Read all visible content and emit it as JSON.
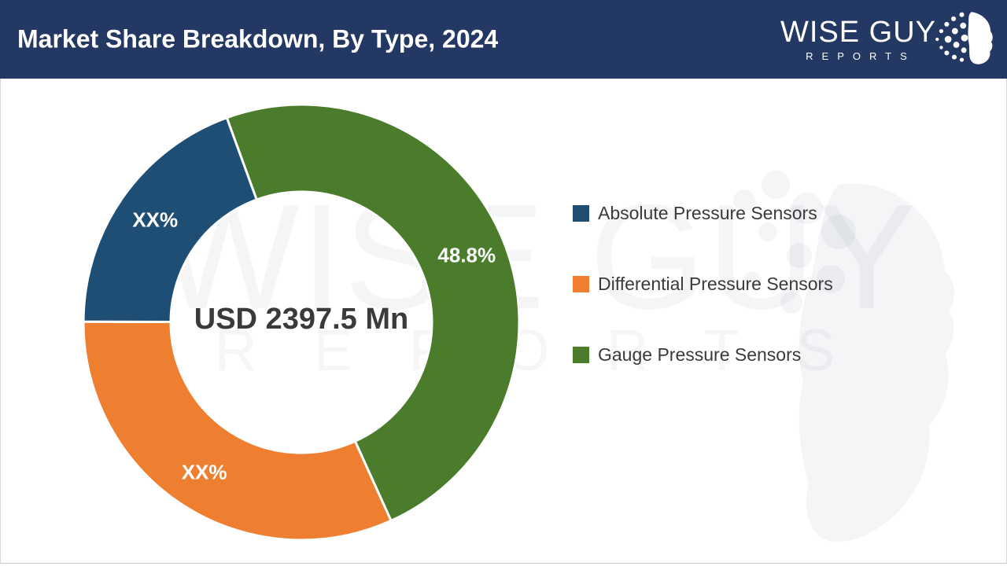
{
  "header": {
    "title": "Market Share Breakdown, By Type, 2024",
    "logo": {
      "name": "WISE GUY",
      "tagline": "REPORTS"
    }
  },
  "chart_data": {
    "type": "donut",
    "title": "Market Share Breakdown, By Type, 2024",
    "center_label": "USD 2397.5 Mn",
    "total_value": "USD 2397.5 Mn",
    "start_angle_deg": -20,
    "slices": [
      {
        "id": "gauge",
        "label": "Gauge Pressure Sensors",
        "value_pct": 48.8,
        "display_label": "48.8%",
        "color": "#4A7C2B"
      },
      {
        "id": "differential",
        "label": "Differential Pressure Sensors",
        "value_pct": 31.8,
        "display_label": "XX%",
        "color": "#EE7F31"
      },
      {
        "id": "absolute",
        "label": "Absolute Pressure Sensors",
        "value_pct": 19.4,
        "display_label": "XX%",
        "color": "#1F4E74"
      }
    ],
    "legend_order": [
      2,
      1,
      0
    ],
    "legend_position": "right"
  },
  "watermark": {
    "line1": "WISE GUY",
    "line2": "REPORTS"
  },
  "colors": {
    "header_bg": "#233862",
    "text_dark": "#3a3a3a",
    "slice_label": "#ffffff",
    "border": "#c9c9c9"
  }
}
